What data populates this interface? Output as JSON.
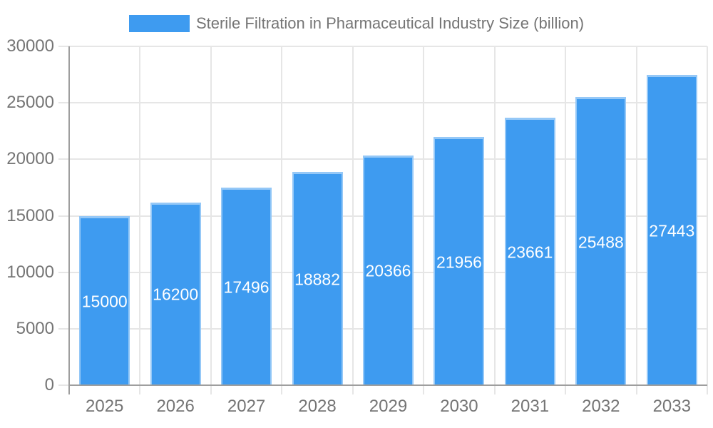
{
  "chart_data": {
    "type": "bar",
    "title": "Sterile Filtration in Pharmaceutical Industry Size (billion)",
    "categories": [
      "2025",
      "2026",
      "2027",
      "2028",
      "2029",
      "2030",
      "2031",
      "2032",
      "2033"
    ],
    "values": [
      15000,
      16200,
      17496,
      18882,
      20366,
      21956,
      23661,
      25488,
      27443
    ],
    "xlabel": "",
    "ylabel": "",
    "ylim": [
      0,
      30000
    ],
    "ytick_step": 5000,
    "yticks": [
      0,
      5000,
      10000,
      15000,
      20000,
      25000,
      30000
    ],
    "grid": true,
    "legend_position": "top-center",
    "value_label_position": "inside-center"
  },
  "colors": {
    "bar": "#3E9BF0",
    "bar_edge": "rgba(255,255,255,0.45)",
    "grid": "#E6E6E6",
    "axis": "#9E9E9E",
    "tick_text": "#757575",
    "title_text": "#757575",
    "value_text": "#FFFFFF",
    "background": "#FFFFFF"
  }
}
